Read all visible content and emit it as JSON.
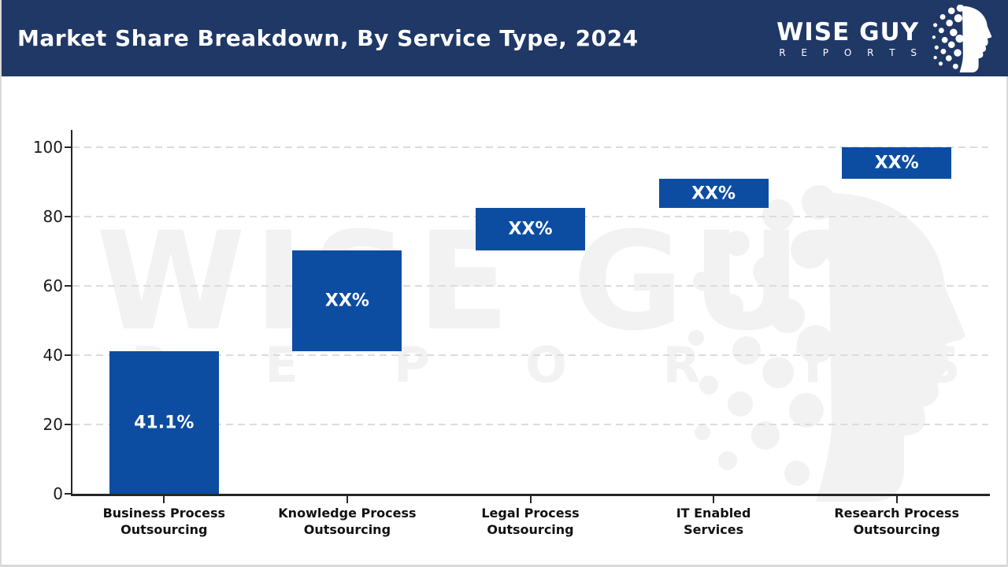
{
  "header": {
    "title": "Market Share Breakdown, By Service Type, 2024",
    "bg_color": "#1f3866",
    "logo": {
      "name": "WISE GUY",
      "sub": "R E P O R T S",
      "head_icon": "dotted-face-profile"
    }
  },
  "watermark": {
    "line1": "WISE GUY",
    "line2": "R E P O R T S",
    "head_icon": "dotted-face-profile",
    "color": "#f2f2f2"
  },
  "chart_data": {
    "type": "bar",
    "subtype": "waterfall",
    "title": "Market Share Breakdown, By Service Type, 2024",
    "bar_color": "#0c4da2",
    "value_label_color": "#ffffff",
    "grid": "horizontal dashed",
    "legend": "none",
    "ylim": [
      0,
      105
    ],
    "yticks": [
      0,
      20,
      40,
      60,
      80,
      100
    ],
    "categories": [
      "Business Process\nOutsourcing",
      "Knowledge Process\nOutsourcing",
      "Legal Process\nOutsourcing",
      "IT Enabled\nServices",
      "Research Process\nOutsourcing"
    ],
    "bars": [
      {
        "category": "Business Process Outsourcing",
        "start": 0,
        "end": 41.1,
        "label": "41.1%"
      },
      {
        "category": "Knowledge Process Outsourcing",
        "start": 41.1,
        "end": 70.2,
        "label": "XX%"
      },
      {
        "category": "Legal Process Outsourcing",
        "start": 70.2,
        "end": 82.5,
        "label": "XX%"
      },
      {
        "category": "IT Enabled Services",
        "start": 82.5,
        "end": 90.9,
        "label": "XX%"
      },
      {
        "category": "Research Process Outsourcing",
        "start": 90.9,
        "end": 100,
        "label": "XX%"
      }
    ]
  }
}
